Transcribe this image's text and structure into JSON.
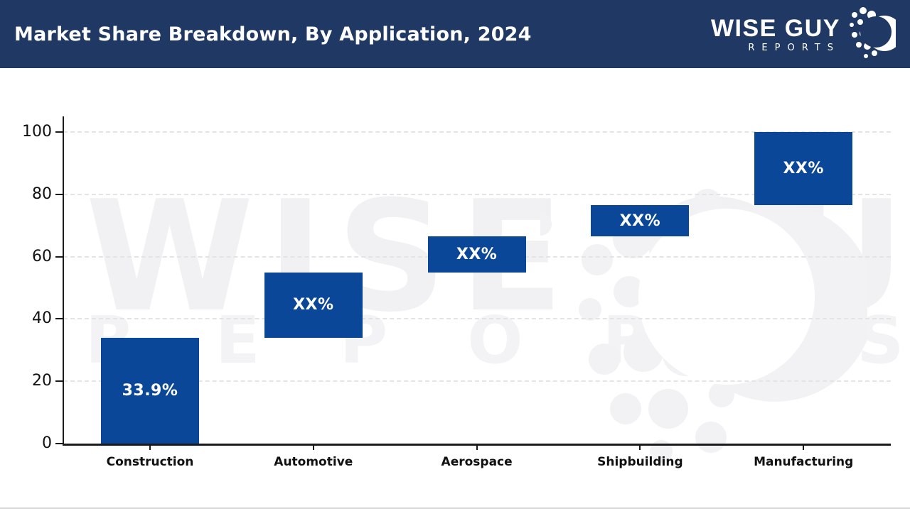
{
  "header": {
    "title": "Market Share Breakdown, By Application, 2024",
    "logo": {
      "line1": "WISE GUY",
      "line2": "REPORTS"
    }
  },
  "watermark": {
    "line1": "WISE GUY",
    "line2": "REPORTS"
  },
  "colors": {
    "header_bg": "#203864",
    "bar": "#0b4798",
    "axis": "#1a1a1a",
    "gridline": "#e4e4e6",
    "watermark": "#f1f1f4"
  },
  "chart_data": {
    "type": "bar",
    "subtype": "waterfall",
    "title": "Market Share Breakdown, By Application, 2024",
    "xlabel": "",
    "ylabel": "",
    "ylim": [
      0,
      105
    ],
    "grid": "horizontal-dashed",
    "legend": "none",
    "categories": [
      "Construction",
      "Automotive",
      "Aerospace",
      "Shipbuilding",
      "Manufacturing"
    ],
    "y_ticks": [
      0,
      20,
      40,
      60,
      80,
      100
    ],
    "bar_color": "#0b4798",
    "segments": [
      {
        "category": "Construction",
        "start": 0,
        "end": 33.9,
        "label": "33.9%"
      },
      {
        "category": "Automotive",
        "start": 33.9,
        "end": 55.0,
        "label": "XX%"
      },
      {
        "category": "Aerospace",
        "start": 55.0,
        "end": 66.5,
        "label": "XX%"
      },
      {
        "category": "Shipbuilding",
        "start": 66.5,
        "end": 76.5,
        "label": "XX%"
      },
      {
        "category": "Manufacturing",
        "start": 76.5,
        "end": 100,
        "label": "XX%"
      }
    ]
  }
}
